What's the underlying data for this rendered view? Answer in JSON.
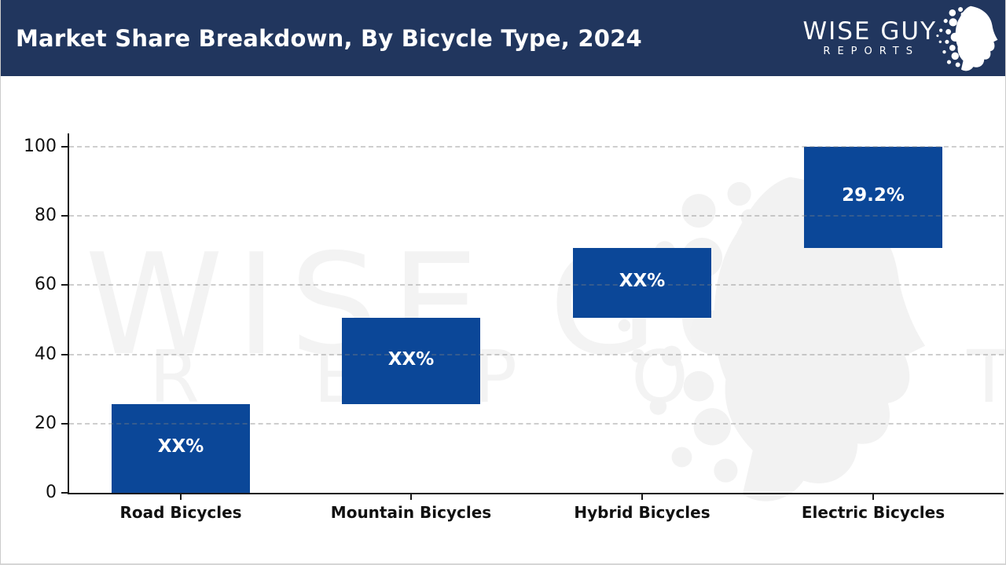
{
  "header": {
    "title": "Market Share Breakdown, By Bicycle Type, 2024",
    "logo": {
      "line1": "WISE GUY",
      "line2": "REPORTS"
    }
  },
  "watermark": {
    "line1": "WISE GU",
    "line2": "R E P O R T S"
  },
  "colors": {
    "header_bg": "#21365e",
    "header_text": "#ffffff",
    "bar_blue": "#0b4798",
    "grid_gray": "#dcdcdc",
    "axis_black": "#1a1a1a",
    "watermark_gray": "#f2f2f2"
  },
  "chart_data": {
    "type": "bar",
    "subtype": "floating-waterfall",
    "title": "Market Share Breakdown, By Bicycle Type, 2024",
    "categories": [
      "Road Bicycles",
      "Mountain Bicycles",
      "Hybrid Bicycles",
      "Electric Bicycles"
    ],
    "bars": [
      {
        "category": "Road Bicycles",
        "start": 0,
        "end": 25.7,
        "label": "XX%"
      },
      {
        "category": "Mountain Bicycles",
        "start": 25.7,
        "end": 50.6,
        "label": "XX%"
      },
      {
        "category": "Hybrid Bicycles",
        "start": 50.6,
        "end": 70.8,
        "label": "XX%"
      },
      {
        "category": "Electric Bicycles",
        "start": 70.8,
        "end": 100,
        "label": "29.2%"
      }
    ],
    "xlabel": "",
    "ylabel": "",
    "ylim": [
      0,
      104
    ],
    "yticks": [
      0,
      20,
      40,
      60,
      80,
      100
    ],
    "grid": "horizontal-dashed, drawn above bars",
    "legend": "none",
    "bar_color": "#0b4798",
    "bar_label_color": "#ffffff"
  }
}
